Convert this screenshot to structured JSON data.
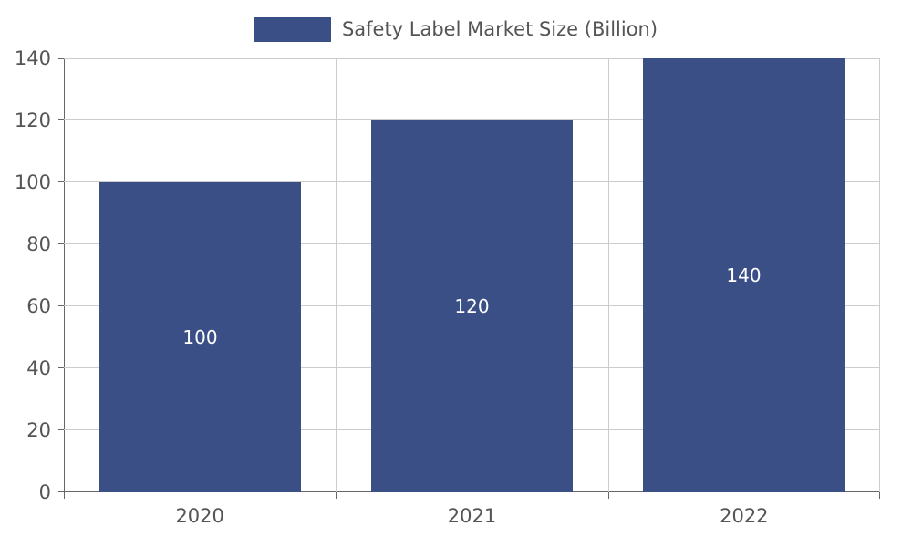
{
  "chart_data": {
    "type": "bar",
    "title": "Safety Label Market Size (Billion)",
    "series_name": "Safety Label Market Size (Billion)",
    "categories": [
      "2020",
      "2021",
      "2022"
    ],
    "values": [
      100,
      120,
      140
    ],
    "value_labels": [
      "100",
      "120",
      "140"
    ],
    "ylim": [
      0,
      140
    ],
    "yticks": [
      0,
      20,
      40,
      60,
      80,
      100,
      120,
      140
    ],
    "xlabel": "",
    "ylabel": "",
    "grid": "on",
    "legend_position": "top-center",
    "colors": {
      "bar": "#3a4f86",
      "grid": "#cccccc",
      "axis": "#666666",
      "tick_label": "#555555",
      "legend_text": "#555555",
      "value_label": "#ffffff",
      "background": "#ffffff"
    }
  }
}
